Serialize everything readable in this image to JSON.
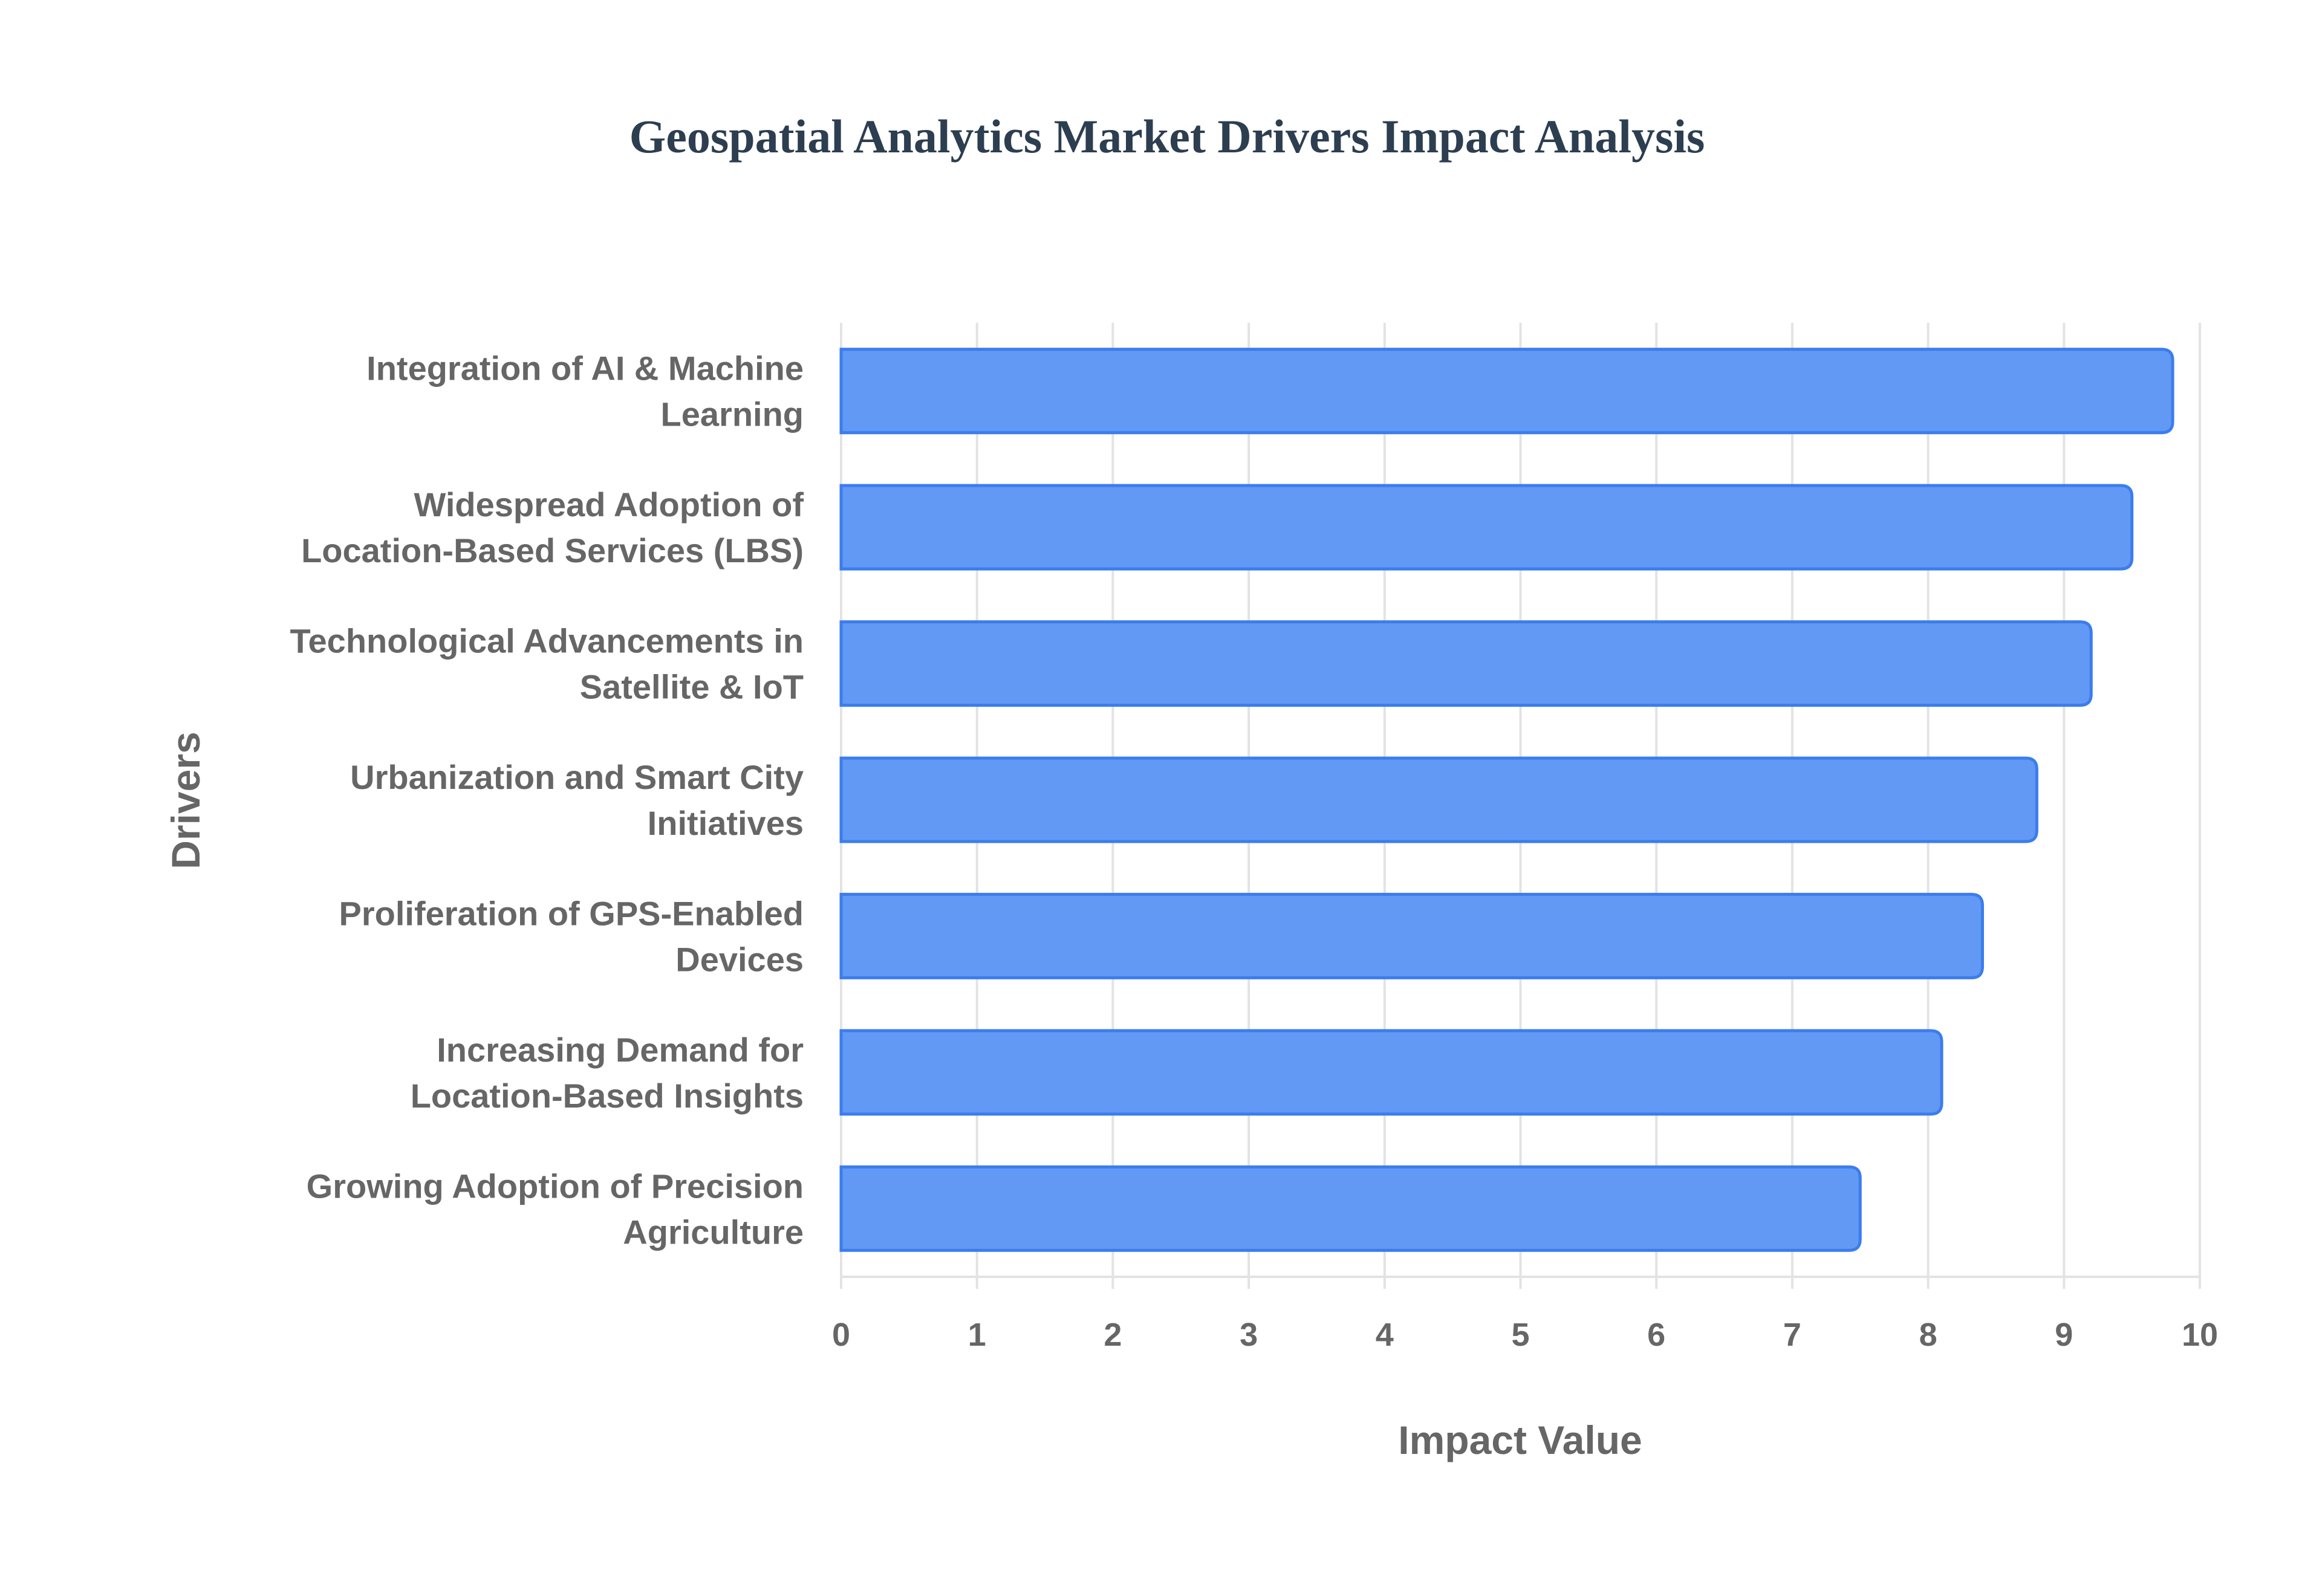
{
  "chart_data": {
    "type": "bar",
    "orientation": "horizontal",
    "title": "Geospatial Analytics Market Drivers Impact Analysis",
    "xlabel": "Impact Value",
    "ylabel": "Drivers",
    "xlim": [
      0,
      10
    ],
    "xticks": [
      "0",
      "1",
      "2",
      "3",
      "4",
      "5",
      "6",
      "7",
      "8",
      "9",
      "10"
    ],
    "grid": true,
    "bar_color": "#6199f5",
    "bar_border": "#3b7ded",
    "categories": [
      [
        "Integration of AI & Machine",
        "Learning"
      ],
      [
        "Widespread Adoption of",
        "Location-Based Services (LBS)"
      ],
      [
        "Technological Advancements in",
        "Satellite & IoT"
      ],
      [
        "Urbanization and Smart City",
        "Initiatives"
      ],
      [
        "Proliferation of GPS-Enabled",
        "Devices"
      ],
      [
        "Increasing Demand for",
        "Location-Based Insights"
      ],
      [
        "Growing Adoption of Precision",
        "Agriculture"
      ]
    ],
    "values": [
      9.8,
      9.5,
      9.2,
      8.8,
      8.4,
      8.1,
      7.5
    ]
  }
}
